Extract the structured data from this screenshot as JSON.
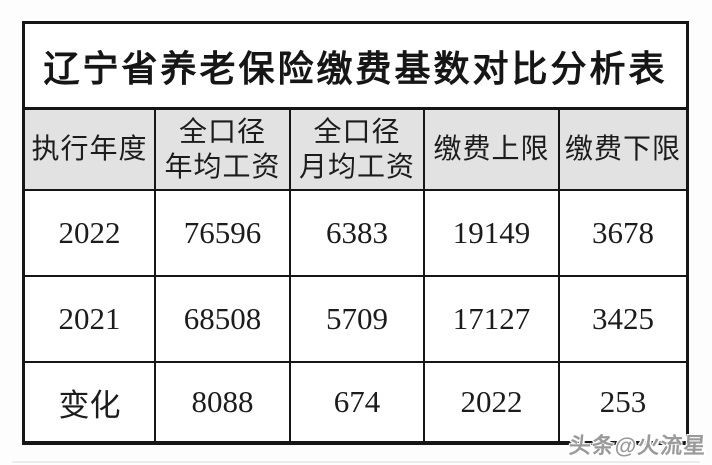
{
  "page": {
    "watermark": "头条@火流星"
  },
  "table": {
    "title": "辽宁省养老保险缴费基数对比分析表",
    "headers": [
      {
        "line1": "执行年度"
      },
      {
        "line1": "全口径",
        "line2": "年均工资"
      },
      {
        "line1": "全口径",
        "line2": "月均工资"
      },
      {
        "line1": "缴费上限"
      },
      {
        "line1": "缴费下限"
      }
    ],
    "rows": [
      [
        "2022",
        "76596",
        "6383",
        "19149",
        "3678"
      ],
      [
        "2021",
        "68508",
        "5709",
        "17127",
        "3425"
      ],
      [
        "变化",
        "8088",
        "674",
        "2022",
        "253"
      ]
    ],
    "colors": {
      "border": "#161616",
      "header_bg": "#e2e2e2",
      "cell_bg": "#ffffff",
      "text": "#1c1c1c",
      "watermark_text": "#9a9a9a"
    }
  },
  "chart_data": {
    "type": "table",
    "title": "辽宁省养老保险缴费基数对比分析表",
    "columns": [
      "执行年度",
      "全口径年均工资",
      "全口径月均工资",
      "缴费上限",
      "缴费下限"
    ],
    "rows": [
      {
        "执行年度": "2022",
        "全口径年均工资": 76596,
        "全口径月均工资": 6383,
        "缴费上限": 19149,
        "缴费下限": 3678
      },
      {
        "执行年度": "2021",
        "全口径年均工资": 68508,
        "全口径月均工资": 5709,
        "缴费上限": 17127,
        "缴费下限": 3425
      },
      {
        "执行年度": "变化",
        "全口径年均工资": 8088,
        "全口径月均工资": 674,
        "缴费上限": 2022,
        "缴费下限": 253
      }
    ]
  }
}
